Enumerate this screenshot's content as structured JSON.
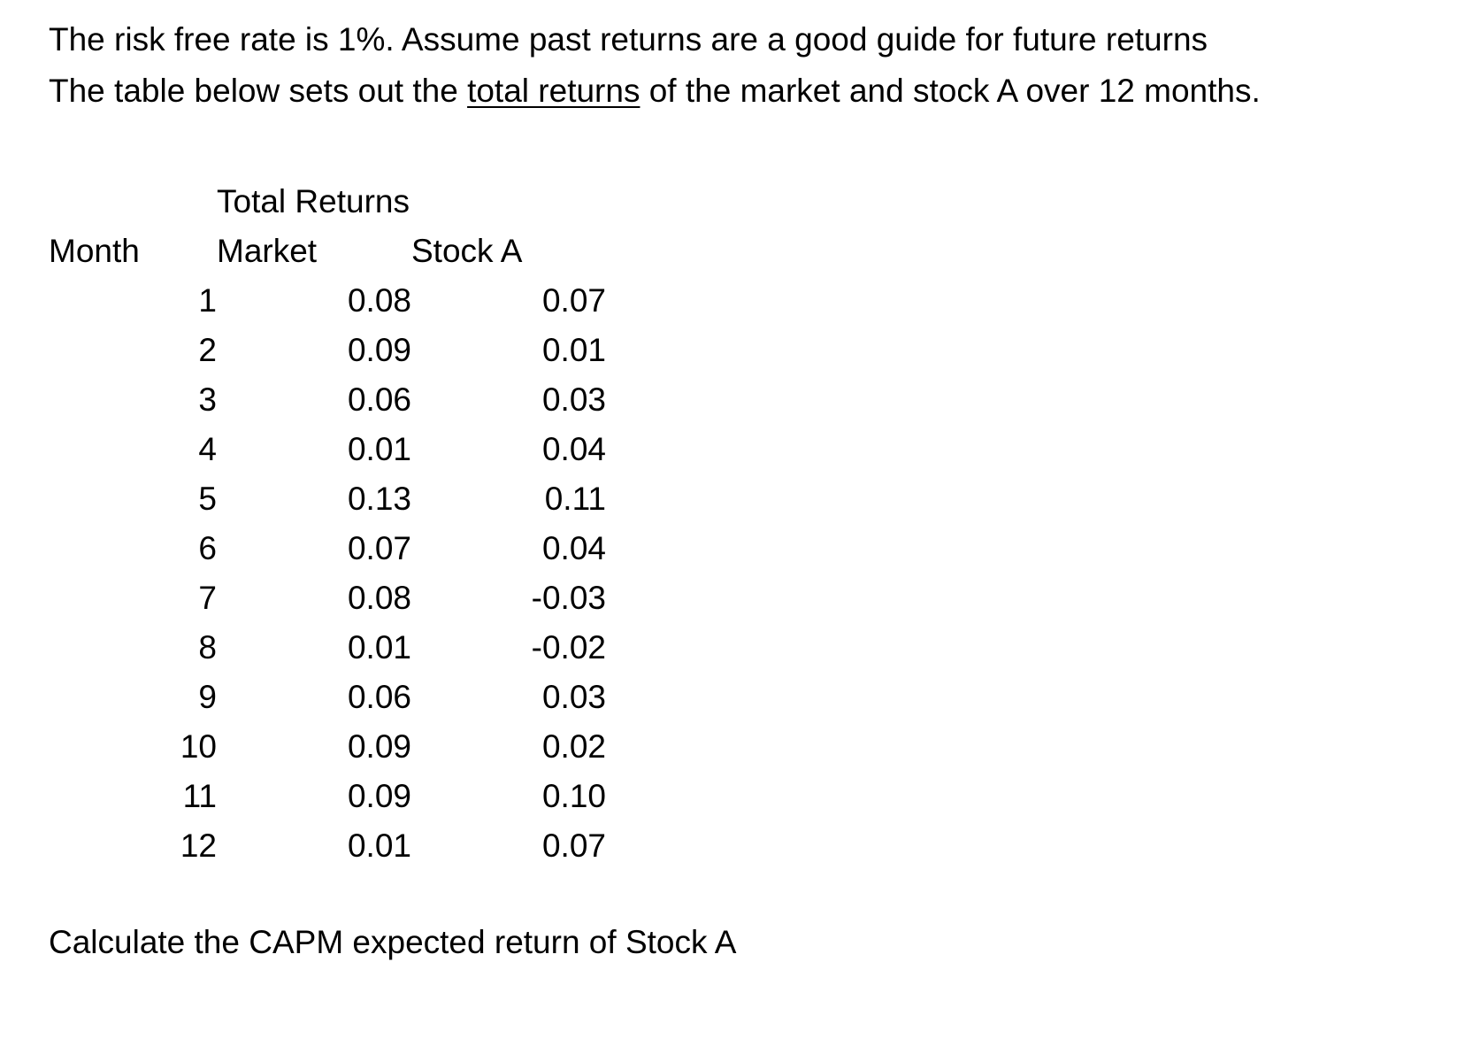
{
  "intro": {
    "line1": "The risk free rate is 1%. Assume past returns are a good guide for future returns",
    "line2_prefix": "The table below sets out the ",
    "line2_underlined": "total returns",
    "line2_suffix": " of the market and stock A over 12 months."
  },
  "table": {
    "group_header": "Total Returns",
    "columns": [
      "Month",
      "Market",
      "Stock A"
    ],
    "rows": [
      {
        "month": "1",
        "market": "0.08",
        "stock_a": "0.07"
      },
      {
        "month": "2",
        "market": "0.09",
        "stock_a": "0.01"
      },
      {
        "month": "3",
        "market": "0.06",
        "stock_a": "0.03"
      },
      {
        "month": "4",
        "market": "0.01",
        "stock_a": "0.04"
      },
      {
        "month": "5",
        "market": "0.13",
        "stock_a": "0.11"
      },
      {
        "month": "6",
        "market": "0.07",
        "stock_a": "0.04"
      },
      {
        "month": "7",
        "market": "0.08",
        "stock_a": "-0.03"
      },
      {
        "month": "8",
        "market": "0.01",
        "stock_a": "-0.02"
      },
      {
        "month": "9",
        "market": "0.06",
        "stock_a": "0.03"
      },
      {
        "month": "10",
        "market": "0.09",
        "stock_a": "0.02"
      },
      {
        "month": "11",
        "market": "0.09",
        "stock_a": "0.10"
      },
      {
        "month": "12",
        "market": "0.01",
        "stock_a": "0.07"
      }
    ]
  },
  "question": "Calculate the CAPM expected return of Stock A"
}
